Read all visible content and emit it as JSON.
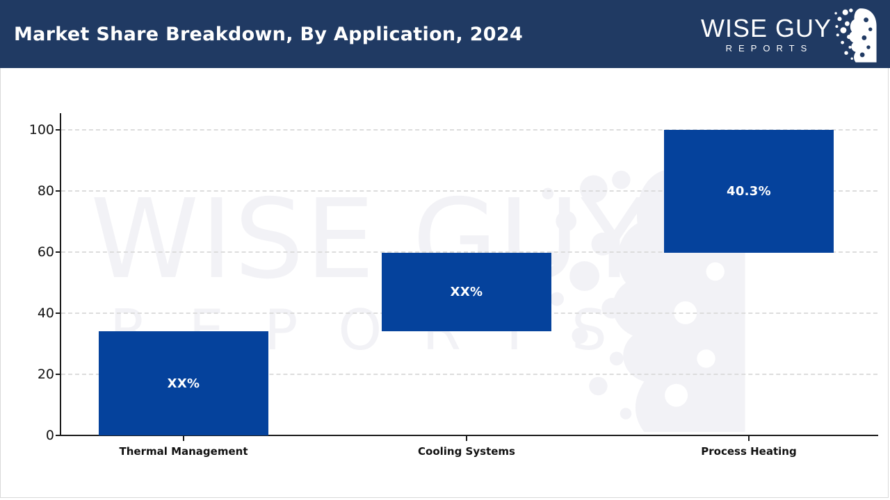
{
  "header": {
    "title": "Market Share Breakdown, By Application, 2024",
    "logo": {
      "name": "Wise Guy Reports",
      "line1": "WISE GUY",
      "line2": "REPORTS"
    }
  },
  "watermark": {
    "line1": "WISE GUY",
    "line2": "REPORTS"
  },
  "chart_data": {
    "type": "bar",
    "subtype": "waterfall",
    "title": "Market Share Breakdown, By Application, 2024",
    "categories": [
      "Thermal Management",
      "Cooling Systems",
      "Process Heating"
    ],
    "bars": [
      {
        "category": "Thermal Management",
        "start": 0,
        "end": 34,
        "label": "XX%"
      },
      {
        "category": "Cooling Systems",
        "start": 34,
        "end": 59.7,
        "label": "XX%"
      },
      {
        "category": "Process Heating",
        "start": 59.7,
        "end": 100,
        "label": "40.3%"
      }
    ],
    "unit": "percent",
    "xlabel": "",
    "ylabel": "",
    "yticks": [
      0,
      20,
      40,
      60,
      80,
      100
    ],
    "ylim": [
      0,
      106
    ],
    "grid": "horizontal-dashed",
    "legend": "none",
    "bar_color": "#05429c",
    "bar_label_color": "#ffffff"
  },
  "colors": {
    "header_bg": "#203a63",
    "header_text": "#ffffff",
    "bar": "#05429c",
    "axis": "#1a1a1a",
    "grid": "#dcdcdc",
    "watermark": "#f2f2f6",
    "card_border": "#d9d9d9",
    "background": "#ffffff"
  }
}
